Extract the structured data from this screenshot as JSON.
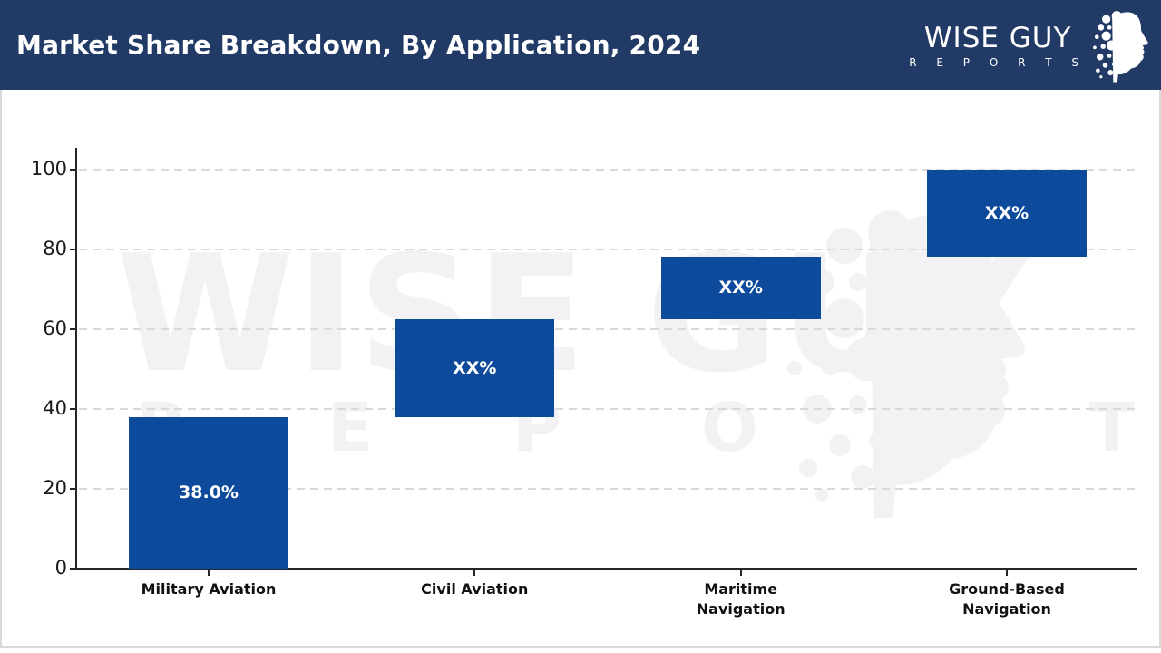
{
  "header": {
    "title": "Market Share Breakdown, By Application, 2024",
    "logo": {
      "line1": "WISE GUY",
      "line2": "R E P O R T S"
    }
  },
  "watermark": {
    "line1": "WISE GUY",
    "line2": "R E P O R T S"
  },
  "colors": {
    "header_bg": "#213a66",
    "bar": "#0d4a9c",
    "bar_label_text": "#ffffff",
    "axis": "#262626",
    "grid": "#d9d9d9",
    "tick_text": "#1a1a1a",
    "watermark": "#f2f2f4",
    "frame_border": "#d9d9d9",
    "title_text": "#ffffff"
  },
  "chart_data": {
    "type": "bar",
    "subtype": "waterfall",
    "title": "Market Share Breakdown, By Application, 2024",
    "categories": [
      "Military Aviation",
      "Civil Aviation",
      "Maritime Navigation",
      "Ground-Based Navigation"
    ],
    "category_label_lines": [
      [
        "Military Aviation"
      ],
      [
        "Civil Aviation"
      ],
      [
        "Maritime",
        "Navigation"
      ],
      [
        "Ground-Based",
        "Navigation"
      ]
    ],
    "series": [
      {
        "name": "Market Share",
        "segments": [
          {
            "category": "Military Aviation",
            "start": 0,
            "end": 38.0,
            "label": "38.0%"
          },
          {
            "category": "Civil Aviation",
            "start": 38.0,
            "end": 62.5,
            "label": "XX%"
          },
          {
            "category": "Maritime Navigation",
            "start": 62.5,
            "end": 78.2,
            "label": "XX%"
          },
          {
            "category": "Ground-Based Navigation",
            "start": 78.2,
            "end": 100.0,
            "label": "XX%"
          }
        ]
      }
    ],
    "ylabel": "",
    "xlabel": "",
    "ylim": [
      0,
      100
    ],
    "yticks": [
      0,
      20,
      40,
      60,
      80,
      100
    ],
    "grid": "horizontal-dashed",
    "legend": "none",
    "bar_labels_inside": true
  }
}
